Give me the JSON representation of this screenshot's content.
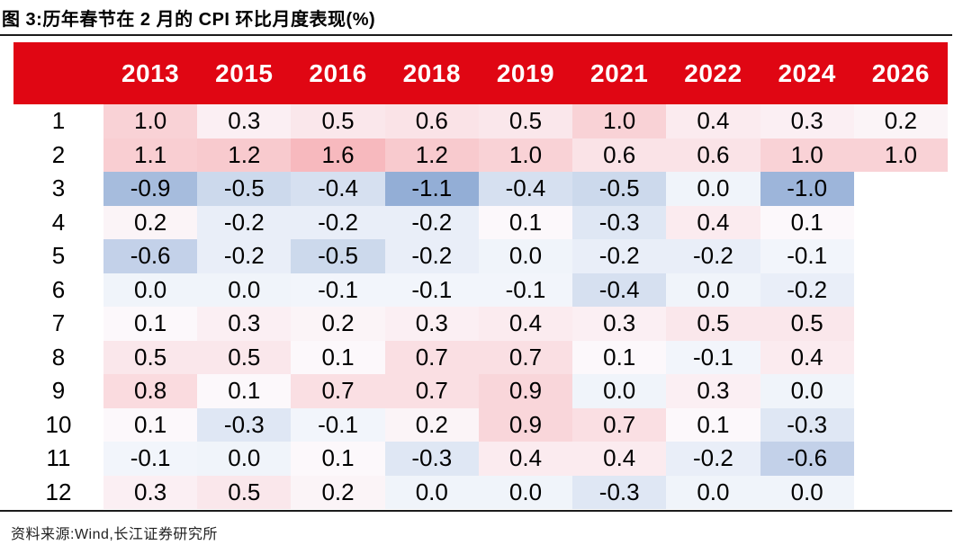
{
  "figure": {
    "title": "图 3:历年春节在 2 月的 CPI 环比月度表现(%)",
    "source_note": "资料来源:Wind,长江证券研究所"
  },
  "chart_data": {
    "type": "heatmap",
    "title": "图 3:历年春节在 2 月的 CPI 环比月度表现(%)",
    "xlabel": "",
    "ylabel": "",
    "columns": [
      "2013",
      "2015",
      "2016",
      "2018",
      "2019",
      "2021",
      "2022",
      "2024",
      "2026"
    ],
    "row_labels": [
      "1",
      "2",
      "3",
      "4",
      "5",
      "6",
      "7",
      "8",
      "9",
      "10",
      "11",
      "12"
    ],
    "rows": [
      [
        1.0,
        0.3,
        0.5,
        0.6,
        0.5,
        1.0,
        0.4,
        0.3,
        0.2
      ],
      [
        1.1,
        1.2,
        1.6,
        1.2,
        1.0,
        0.6,
        0.6,
        1.0,
        1.0
      ],
      [
        -0.9,
        -0.5,
        -0.4,
        -1.1,
        -0.4,
        -0.5,
        0.0,
        -1.0,
        null
      ],
      [
        0.2,
        -0.2,
        -0.2,
        -0.2,
        0.1,
        -0.3,
        0.4,
        0.1,
        null
      ],
      [
        -0.6,
        -0.2,
        -0.5,
        -0.2,
        0.0,
        -0.2,
        -0.2,
        -0.1,
        null
      ],
      [
        0.0,
        0.0,
        -0.1,
        -0.1,
        -0.1,
        -0.4,
        0.0,
        -0.2,
        null
      ],
      [
        0.1,
        0.3,
        0.2,
        0.3,
        0.4,
        0.3,
        0.5,
        0.5,
        null
      ],
      [
        0.5,
        0.5,
        0.1,
        0.7,
        0.7,
        0.1,
        -0.1,
        0.4,
        null
      ],
      [
        0.8,
        0.1,
        0.7,
        0.7,
        0.9,
        0.0,
        0.3,
        0.0,
        null
      ],
      [
        0.1,
        -0.3,
        -0.1,
        0.2,
        0.9,
        0.7,
        0.1,
        -0.3,
        null
      ],
      [
        -0.1,
        0.0,
        0.1,
        -0.3,
        0.4,
        0.4,
        -0.2,
        -0.6,
        null
      ],
      [
        0.3,
        0.5,
        0.2,
        0.0,
        0.0,
        -0.3,
        0.0,
        0.0,
        null
      ]
    ],
    "value_format": "one_decimal",
    "legend_position": "none",
    "grid": false,
    "colors": {
      "header_bg": "#E00613",
      "header_text": "#FFFFFF",
      "neutral": "#FCFCFF",
      "zero_tint": "#F0F4FA",
      "positive_max": "#F7B9BE",
      "negative_max": "#93AED6",
      "positive_scale": 1.6,
      "negative_scale": 1.1,
      "rule_color": "#1C1C1C",
      "cell_text": "#000000"
    },
    "source_note": "资料来源:Wind,长江证券研究所"
  }
}
